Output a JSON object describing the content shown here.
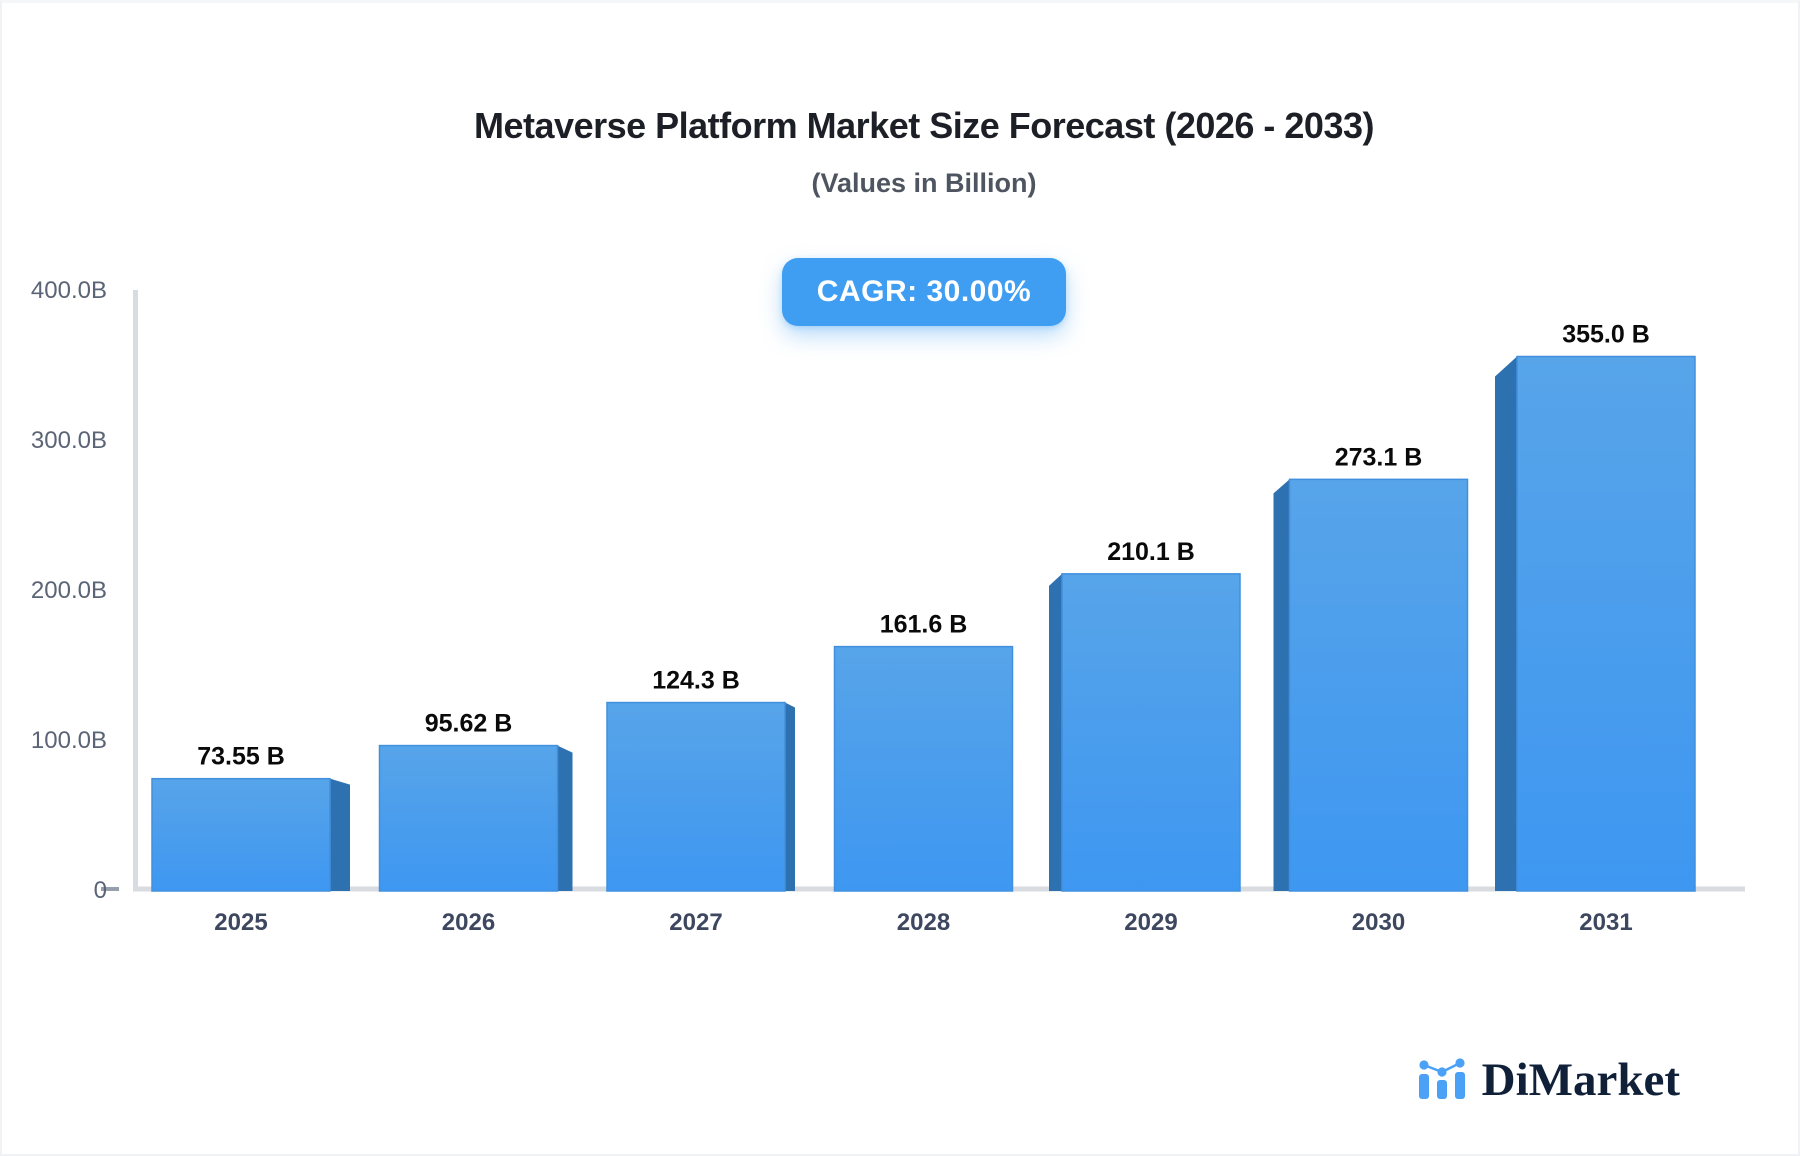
{
  "badge": {
    "label": "CAGR: 30.00%"
  },
  "logo": {
    "text": "DiMarket"
  },
  "chart_data": {
    "type": "bar",
    "title": "Metaverse Platform Market Size Forecast (2026 - 2033)",
    "subtitle": "(Values in Billion)",
    "categories": [
      "2025",
      "2026",
      "2027",
      "2028",
      "2029",
      "2030",
      "2031"
    ],
    "values": [
      73.55,
      95.62,
      124.3,
      161.6,
      210.1,
      273.1,
      355.0
    ],
    "value_labels": [
      "73.55 B",
      "95.62 B",
      "124.3 B",
      "161.6 B",
      "210.1 B",
      "273.1 B",
      "355.0 B"
    ],
    "y_ticks": [
      {
        "label": "400.0B",
        "value": 400
      },
      {
        "label": "300.0B",
        "value": 300
      },
      {
        "label": "200.0B",
        "value": 200
      },
      {
        "label": "100.0B",
        "value": 100
      },
      {
        "label": "0",
        "value": 0
      }
    ],
    "ylim": [
      0,
      400
    ],
    "xlabel": "",
    "ylabel": "",
    "grid": false,
    "legend": false,
    "bar_style": "3d-perspective",
    "colors": {
      "bar_top": "#57a4e9",
      "bar_bottom": "#3e97f1",
      "bar_side": "#2e71b1",
      "bar_edge": "#4090dd",
      "axis": "#d8dbdf",
      "zero_tick": "#96a0ab",
      "value_label": "#0a0a0a",
      "x_label": "#3d4860",
      "y_label": "#5b6476",
      "badge_bg": "#3f9ef2",
      "badge_text": "#ffffff",
      "title_text": "#1c2026",
      "subtitle_text": "#4e5560",
      "logo_navy": "#0f2038",
      "logo_blue": "#4aa1f6"
    }
  }
}
